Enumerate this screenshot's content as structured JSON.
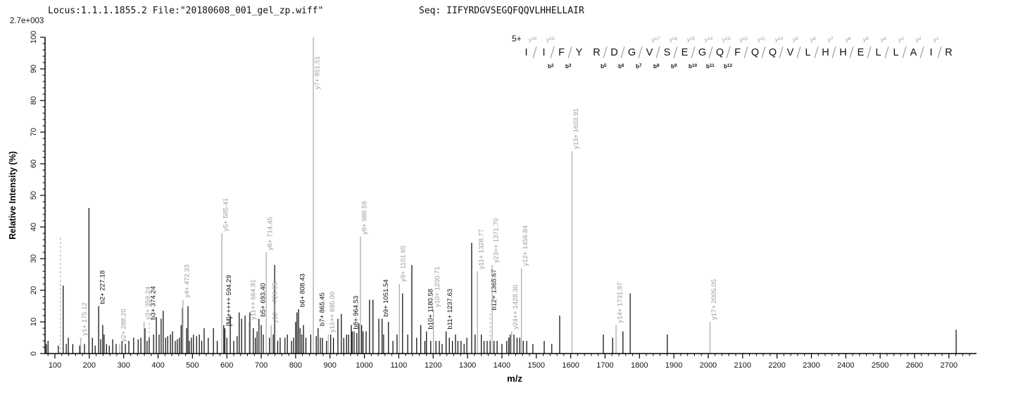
{
  "header": {
    "locus_file": "Locus:1.1.1.1855.2 File:\"20180608_001_gel_zp.wiff\"",
    "seq_line": "Seq: IIFYRDGVSEGQFQQVLHHELLAIR",
    "intensity_scale": "2.7e+003"
  },
  "sequence_map": {
    "charge": "5+",
    "residues": "IIFYRDGVSEGQFQQVLHHELLAIR",
    "gaps": [
      {
        "after": 1,
        "y": "y24",
        "b": null
      },
      {
        "after": 2,
        "y": "y23",
        "b": "b2"
      },
      {
        "after": 3,
        "y": null,
        "b": "b3"
      },
      {
        "after": 5,
        "y": null,
        "b": "b5"
      },
      {
        "after": 6,
        "y": null,
        "b": "b6"
      },
      {
        "after": 7,
        "y": null,
        "b": "b7"
      },
      {
        "after": 8,
        "y": "y17",
        "b": "b8"
      },
      {
        "after": 9,
        "y": "y16",
        "b": "b9"
      },
      {
        "after": 10,
        "y": "y15",
        "b": "b10"
      },
      {
        "after": 11,
        "y": "y14",
        "b": "b11"
      },
      {
        "after": 12,
        "y": "y13",
        "b": "b12"
      },
      {
        "after": 13,
        "y": "y12",
        "b": null
      },
      {
        "after": 14,
        "y": "y11",
        "b": null
      },
      {
        "after": 15,
        "y": "y10",
        "b": null
      },
      {
        "after": 16,
        "y": "y9",
        "b": null
      },
      {
        "after": 17,
        "y": "y8",
        "b": null
      },
      {
        "after": 18,
        "y": "y7",
        "b": null
      },
      {
        "after": 19,
        "y": "y6",
        "b": null
      },
      {
        "after": 20,
        "y": "y5",
        "b": null
      },
      {
        "after": 21,
        "y": "y4",
        "b": null
      },
      {
        "after": 22,
        "y": "y3",
        "b": null
      },
      {
        "after": 23,
        "y": "y2",
        "b": null
      },
      {
        "after": 24,
        "y": "y1",
        "b": null
      }
    ]
  },
  "chart_data": {
    "type": "bar",
    "subtype": "ms2-stick-spectrum",
    "xlabel": "m/z",
    "ylabel": "Relative  Intensity (%)",
    "xlim": [
      70,
      2775
    ],
    "ylim": [
      0,
      100
    ],
    "x_ticks": {
      "start": 100,
      "end": 2700,
      "step": 100,
      "minor_step": 20
    },
    "y_ticks": {
      "start": 0,
      "end": 100,
      "step": 10,
      "minor_step": 2
    },
    "colors": {
      "y_ion": "#a7a7a7",
      "y_ion_text": "#9b9b9b",
      "b_ion": "#000000"
    },
    "labeled_peaks": [
      {
        "label": "y1+ 175.12",
        "mz": 175.12,
        "pct": 5,
        "ion": "y"
      },
      {
        "label": "b2+ 227.18",
        "mz": 227.18,
        "pct": 15,
        "ion": "b"
      },
      {
        "label": "y2+ 288.20",
        "mz": 288.2,
        "pct": 3,
        "ion": "y"
      },
      {
        "label": "y3+ 359.24",
        "mz": 359.24,
        "pct": 10,
        "ion": "y"
      },
      {
        "label": "b3+ 374.24",
        "mz": 374.24,
        "pct": 10,
        "ion": "b",
        "dash_from": 5
      },
      {
        "label": "y4+ 472.33",
        "mz": 472.33,
        "pct": 17,
        "ion": "y"
      },
      {
        "label": "y5+ 585.41",
        "mz": 585.41,
        "pct": 38,
        "ion": "y"
      },
      {
        "label": "[M]+++++ 594.29",
        "mz": 594.29,
        "pct": 8,
        "ion": "b"
      },
      {
        "label": "y11++ 664.91",
        "mz": 664.91,
        "pct": 10,
        "ion": "y"
      },
      {
        "label": "b5+ 693.40",
        "mz": 693.4,
        "pct": 11,
        "ion": "b"
      },
      {
        "label": "y6+ 714.45",
        "mz": 714.45,
        "pct": 32,
        "ion": "y"
      },
      {
        "label": "y12++ 728.95",
        "mz": 728.95,
        "pct": 9,
        "ion": "y"
      },
      {
        "label": "b6+ 808.43",
        "mz": 808.43,
        "pct": 14,
        "ion": "b"
      },
      {
        "label": "y7+ 851.51",
        "mz": 851.51,
        "pct": 100,
        "ion": "y"
      },
      {
        "label": "b7+ 865.45",
        "mz": 865.45,
        "pct": 8,
        "ion": "b"
      },
      {
        "label": "y15++ 895.00",
        "mz": 895.0,
        "pct": 6,
        "ion": "y"
      },
      {
        "label": "b8+ 964.53",
        "mz": 964.53,
        "pct": 7,
        "ion": "b"
      },
      {
        "label": "y8+ 988.59",
        "mz": 988.59,
        "pct": 37,
        "ion": "y"
      },
      {
        "label": "b9+ 1051.54",
        "mz": 1051.54,
        "pct": 11,
        "ion": "b"
      },
      {
        "label": "y9+ 1101.65",
        "mz": 1101.65,
        "pct": 22,
        "ion": "y"
      },
      {
        "label": "b10+ 1180.58",
        "mz": 1180.58,
        "pct": 7,
        "ion": "b"
      },
      {
        "label": "y10+ 1200.71",
        "mz": 1200.71,
        "pct": 14,
        "ion": "y"
      },
      {
        "label": "b11+ 1237.63",
        "mz": 1237.63,
        "pct": 7,
        "ion": "b"
      },
      {
        "label": "y11+ 1328.77",
        "mz": 1328.77,
        "pct": 26,
        "ion": "y"
      },
      {
        "label": "b12+ 1365.67",
        "mz": 1365.67,
        "pct": 13,
        "ion": "b",
        "dash_from": 4
      },
      {
        "label": "y23++ 1371.70",
        "mz": 1371.7,
        "pct": 28,
        "ion": "y"
      },
      {
        "label": "y24++ 1428.30",
        "mz": 1428.3,
        "pct": 7,
        "ion": "y"
      },
      {
        "label": "y12+ 1456.84",
        "mz": 1456.84,
        "pct": 27,
        "ion": "y"
      },
      {
        "label": "y13+ 1603.91",
        "mz": 1603.91,
        "pct": 64,
        "ion": "y"
      },
      {
        "label": "y14+ 1731.97",
        "mz": 1731.97,
        "pct": 9,
        "ion": "y"
      },
      {
        "label": "y17+ 2005.05",
        "mz": 2005.05,
        "pct": 10,
        "ion": "y"
      }
    ],
    "dashed_unlabeled": [
      {
        "mz": 116,
        "pct": 37
      }
    ],
    "unlabeled_peaks": [
      [
        75,
        3
      ],
      [
        80,
        4
      ],
      [
        110,
        2.5
      ],
      [
        124,
        21.5
      ],
      [
        133,
        3
      ],
      [
        139,
        5
      ],
      [
        152,
        3
      ],
      [
        172,
        2.5
      ],
      [
        186,
        3
      ],
      [
        199,
        46
      ],
      [
        209,
        5
      ],
      [
        217,
        2.5
      ],
      [
        233,
        4.5
      ],
      [
        239,
        9
      ],
      [
        243,
        6
      ],
      [
        250,
        3
      ],
      [
        258,
        2.5
      ],
      [
        268,
        4.5
      ],
      [
        278,
        3
      ],
      [
        295,
        4
      ],
      [
        305,
        3
      ],
      [
        315,
        4
      ],
      [
        329,
        5
      ],
      [
        342,
        4.5
      ],
      [
        350,
        5
      ],
      [
        362,
        8
      ],
      [
        368,
        4
      ],
      [
        387,
        6
      ],
      [
        395,
        11.5
      ],
      [
        403,
        6
      ],
      [
        409,
        11
      ],
      [
        415,
        13.5
      ],
      [
        422,
        5
      ],
      [
        428,
        5.5
      ],
      [
        436,
        6
      ],
      [
        442,
        7
      ],
      [
        450,
        4
      ],
      [
        456,
        4.5
      ],
      [
        462,
        5
      ],
      [
        467,
        9
      ],
      [
        471,
        14.5
      ],
      [
        483,
        8
      ],
      [
        487,
        15
      ],
      [
        491,
        4
      ],
      [
        497,
        5
      ],
      [
        503,
        6
      ],
      [
        512,
        5.5
      ],
      [
        520,
        6
      ],
      [
        527,
        4
      ],
      [
        534,
        8
      ],
      [
        546,
        5
      ],
      [
        561,
        8
      ],
      [
        572,
        4
      ],
      [
        591,
        9
      ],
      [
        600,
        5
      ],
      [
        610,
        12
      ],
      [
        620,
        4
      ],
      [
        630,
        5.5
      ],
      [
        636,
        13
      ],
      [
        643,
        11
      ],
      [
        653,
        12
      ],
      [
        667,
        13
      ],
      [
        677,
        8
      ],
      [
        683,
        5
      ],
      [
        688,
        7
      ],
      [
        700,
        9
      ],
      [
        706,
        6
      ],
      [
        724,
        5
      ],
      [
        735,
        6
      ],
      [
        739,
        28
      ],
      [
        748,
        4
      ],
      [
        755,
        5
      ],
      [
        769,
        5
      ],
      [
        776,
        6
      ],
      [
        788,
        4
      ],
      [
        794,
        5
      ],
      [
        800,
        10
      ],
      [
        804,
        13
      ],
      [
        813,
        8
      ],
      [
        818,
        6
      ],
      [
        823,
        9
      ],
      [
        830,
        5
      ],
      [
        844,
        6
      ],
      [
        860,
        5.5
      ],
      [
        872,
        5
      ],
      [
        878,
        5
      ],
      [
        890,
        4
      ],
      [
        902,
        6
      ],
      [
        910,
        5
      ],
      [
        923,
        11
      ],
      [
        933,
        12.5
      ],
      [
        940,
        5
      ],
      [
        948,
        6
      ],
      [
        954,
        6
      ],
      [
        962,
        9
      ],
      [
        970,
        7
      ],
      [
        978,
        6.5
      ],
      [
        984,
        9.5
      ],
      [
        992,
        9
      ],
      [
        996,
        7
      ],
      [
        1005,
        7
      ],
      [
        1015,
        17
      ],
      [
        1025,
        17
      ],
      [
        1042,
        11
      ],
      [
        1056,
        6
      ],
      [
        1070,
        10
      ],
      [
        1083,
        4
      ],
      [
        1095,
        6
      ],
      [
        1111,
        19
      ],
      [
        1126,
        6
      ],
      [
        1138,
        28
      ],
      [
        1152,
        5
      ],
      [
        1164,
        9
      ],
      [
        1176,
        4
      ],
      [
        1193,
        4
      ],
      [
        1208,
        4
      ],
      [
        1218,
        4
      ],
      [
        1226,
        3
      ],
      [
        1247,
        5
      ],
      [
        1256,
        4
      ],
      [
        1265,
        6
      ],
      [
        1272,
        4
      ],
      [
        1281,
        4
      ],
      [
        1290,
        3
      ],
      [
        1298,
        5
      ],
      [
        1312,
        35
      ],
      [
        1322,
        6
      ],
      [
        1340,
        6
      ],
      [
        1348,
        4
      ],
      [
        1357,
        4
      ],
      [
        1377,
        4
      ],
      [
        1386,
        4
      ],
      [
        1400,
        3
      ],
      [
        1414,
        4
      ],
      [
        1420,
        5
      ],
      [
        1424,
        6
      ],
      [
        1435,
        6
      ],
      [
        1444,
        5
      ],
      [
        1452,
        5
      ],
      [
        1462,
        4
      ],
      [
        1472,
        4
      ],
      [
        1490,
        3
      ],
      [
        1523,
        4
      ],
      [
        1545,
        3
      ],
      [
        1568,
        12
      ],
      [
        1695,
        6
      ],
      [
        1722,
        5
      ],
      [
        1752,
        7
      ],
      [
        1773,
        19
      ],
      [
        1881,
        6
      ],
      [
        2721,
        7.5
      ]
    ]
  }
}
